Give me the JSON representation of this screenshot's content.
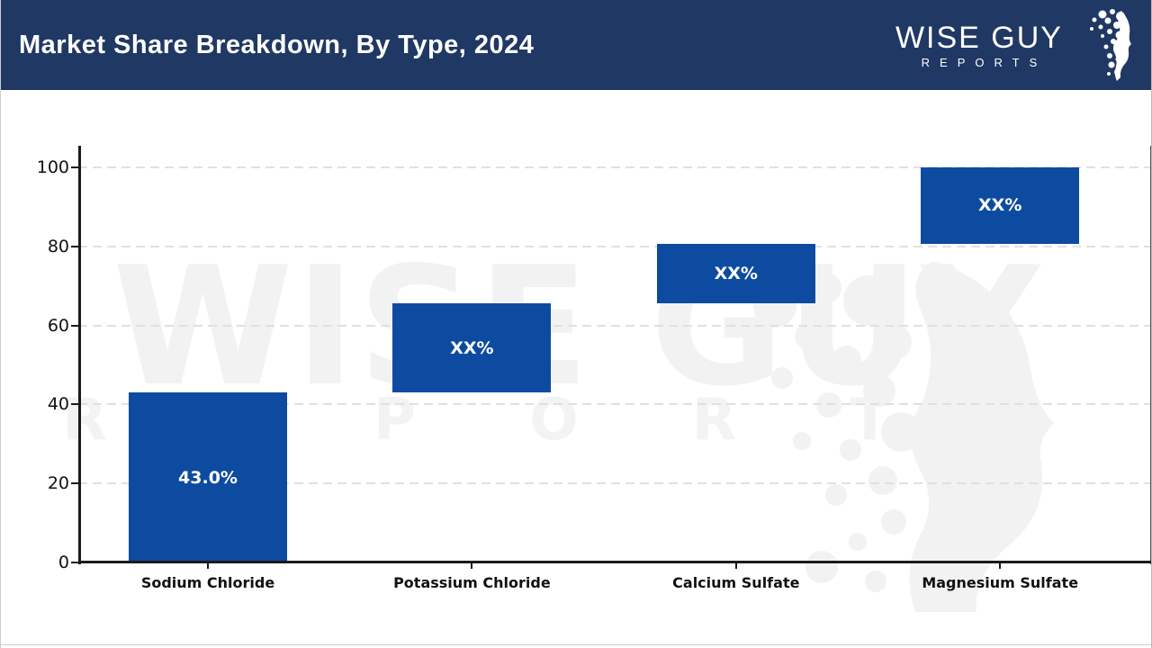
{
  "header": {
    "title": "Market Share Breakdown, By Type, 2024",
    "bg_color": "#203864",
    "logo": {
      "line1": "WISE GUY",
      "line2": "REPORTS"
    }
  },
  "watermark": {
    "line1": "WISE GUY",
    "line2": "R E P O R T S"
  },
  "chart_data": {
    "type": "bar",
    "subtype": "waterfall",
    "title": "Market Share Breakdown, By Type, 2024",
    "xlabel": "",
    "ylabel": "",
    "categories": [
      "Sodium Chloride",
      "Potassium Chloride",
      "Calcium Sulfate",
      "Magnesium Sulfate"
    ],
    "segments": [
      {
        "category": "Sodium Chloride",
        "start": 0,
        "end": 43.0,
        "label": "43.0%"
      },
      {
        "category": "Potassium Chloride",
        "start": 43.0,
        "end": 65.5,
        "label": "XX%"
      },
      {
        "category": "Calcium Sulfate",
        "start": 65.5,
        "end": 80.7,
        "label": "XX%"
      },
      {
        "category": "Magnesium Sulfate",
        "start": 80.7,
        "end": 100.0,
        "label": "XX%"
      }
    ],
    "ylim": [
      0,
      105
    ],
    "yticks": [
      0,
      20,
      40,
      60,
      80,
      100
    ],
    "grid": "horizontal dashed",
    "legend": "none",
    "bar_color": "#0d4ba0",
    "bar_label_color": "#ffffff"
  }
}
